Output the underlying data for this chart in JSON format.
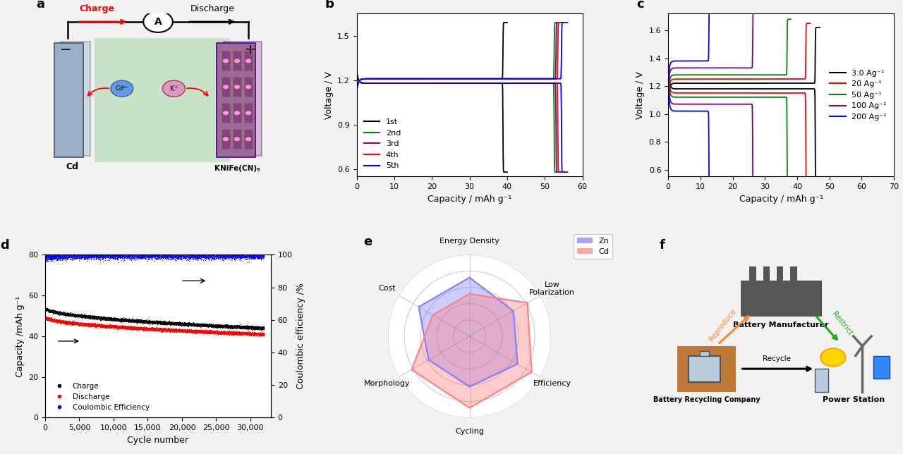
{
  "panel_b": {
    "xlabel": "Capacity / mAh g⁻¹",
    "ylabel": "Voltage / V",
    "ylim": [
      0.55,
      1.65
    ],
    "xlim": [
      0,
      60
    ],
    "yticks": [
      0.6,
      0.9,
      1.2,
      1.5
    ],
    "xticks": [
      0,
      10,
      20,
      30,
      40,
      50,
      60
    ],
    "cycles": [
      "1st",
      "2nd",
      "3rd",
      "4th",
      "5th"
    ],
    "colors": [
      "black",
      "#008000",
      "#800080",
      "#FF0000",
      "#0000FF"
    ],
    "caps": [
      40,
      54,
      54.5,
      55,
      56
    ],
    "v_dis_flat": 1.18,
    "v_chg_flat": 1.21
  },
  "panel_c": {
    "xlabel": "Capacity / mAh g⁻¹",
    "ylabel": "Voltage / V",
    "ylim": [
      0.55,
      1.72
    ],
    "xlim": [
      0,
      70
    ],
    "yticks": [
      0.6,
      0.8,
      1.0,
      1.2,
      1.4,
      1.6
    ],
    "xticks": [
      0,
      10,
      20,
      30,
      40,
      50,
      60,
      70
    ],
    "rates": [
      "3.0 Ag⁻¹",
      "20 Ag⁻¹",
      "50 Ag⁻¹",
      "100 Ag⁻¹",
      "200 Ag⁻¹"
    ],
    "colors": [
      "black",
      "#FF0000",
      "#008000",
      "#800080",
      "#0000FF"
    ],
    "caps": [
      47,
      44,
      38,
      27,
      13
    ],
    "v_chg_flat": [
      1.22,
      1.25,
      1.28,
      1.33,
      1.38
    ],
    "v_dis_flat": [
      1.18,
      1.15,
      1.12,
      1.07,
      1.02
    ]
  },
  "panel_d": {
    "xlabel": "Cycle number",
    "ylabel_left": "Capacity /mAh g⁻¹",
    "ylabel_right": "Coulombic efficiency /%",
    "ylim_left": [
      0,
      80
    ],
    "xlim": [
      0,
      33000
    ],
    "yticks_left": [
      0,
      20,
      40,
      60,
      80
    ],
    "yticks_right": [
      0,
      20,
      40,
      60,
      80,
      100
    ],
    "xticks": [
      0,
      5000,
      10000,
      15000,
      20000,
      25000,
      30000
    ]
  },
  "panel_e": {
    "categories": [
      "Energy Density",
      "Low\nPolarization",
      "Efficiency",
      "Cycling",
      "Morphology",
      "Cost"
    ],
    "zn_values": [
      0.72,
      0.62,
      0.68,
      0.62,
      0.58,
      0.72
    ],
    "cd_values": [
      0.52,
      0.82,
      0.88,
      0.88,
      0.82,
      0.52
    ],
    "zn_color": "#8080FF",
    "cd_color": "#FF8080",
    "zn_label": "Zn",
    "cd_label": "Cd"
  },
  "background_color": "#F2F2F2"
}
